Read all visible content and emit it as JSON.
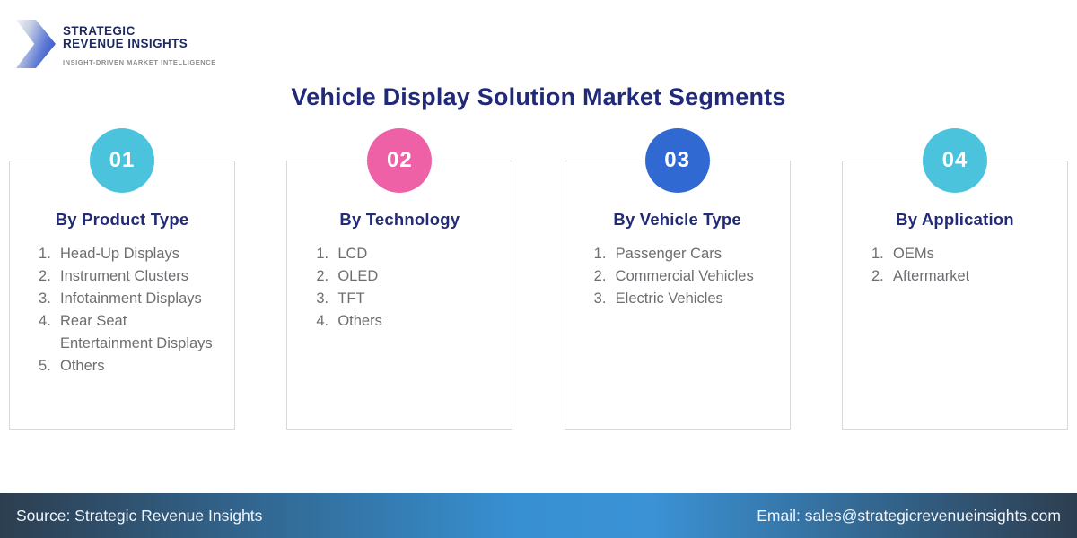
{
  "logo": {
    "line1": "STRATEGIC",
    "line2": "REVENUE INSIGHTS",
    "tagline": "INSIGHT-DRIVEN MARKET INTELLIGENCE"
  },
  "title": "Vehicle Display Solution Market Segments",
  "segments": [
    {
      "number": "01",
      "badge_color": "#4cc3dd",
      "heading": "By Product Type",
      "items": [
        "Head-Up Displays",
        "Instrument Clusters",
        "Infotainment Displays",
        "Rear Seat Entertainment Displays",
        "Others"
      ]
    },
    {
      "number": "02",
      "badge_color": "#ee61a6",
      "heading": "By Technology",
      "items": [
        "LCD",
        "OLED",
        "TFT",
        "Others"
      ]
    },
    {
      "number": "03",
      "badge_color": "#3069d2",
      "heading": "By Vehicle Type",
      "items": [
        "Passenger Cars",
        "Commercial Vehicles",
        "Electric Vehicles"
      ]
    },
    {
      "number": "04",
      "badge_color": "#4cc3dd",
      "heading": "By Application",
      "items": [
        "OEMs",
        "Aftermarket"
      ]
    }
  ],
  "footer": {
    "source": "Source: Strategic Revenue Insights",
    "email": "Email: sales@strategicrevenueinsights.com"
  },
  "colors": {
    "title_navy": "#20297a",
    "heading_navy": "#232b77",
    "list_gray": "#6d6e71",
    "card_border": "#d9d9d9",
    "footer_dark": "#2d3e50",
    "footer_blue": "#3b93d6"
  }
}
